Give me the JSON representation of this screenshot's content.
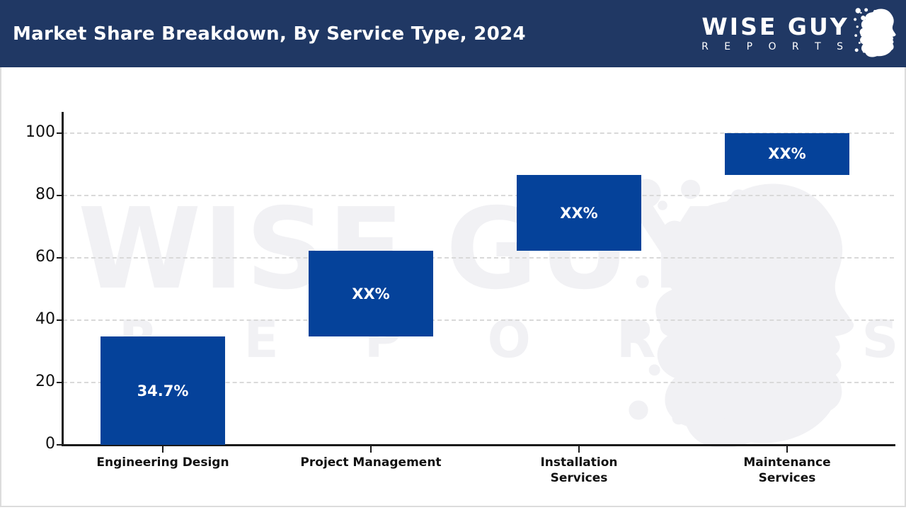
{
  "header": {
    "title": "Market Share Breakdown, By Service Type, 2024",
    "logo": {
      "name": "WISE GUY REPORTS",
      "line1": "WISE GUY",
      "line2": "R E P O R T S"
    }
  },
  "watermark": {
    "line1": "WISE GUY",
    "line2": "R E P O R T S"
  },
  "colors": {
    "header_bg": "#203864",
    "bar": "#05429a",
    "bar_label_text": "#ffffff",
    "grid": "#d9d9d9",
    "axis": "#1a1a1a",
    "tick_text": "#111111",
    "watermark": "#f1f1f4",
    "frame_border": "#dcdcdc"
  },
  "chart_data": {
    "type": "bar",
    "subtype": "stacked-waterfall",
    "title": "Market Share Breakdown, By Service Type, 2024",
    "xlabel": "",
    "ylabel": "",
    "categories": [
      "Engineering Design",
      "Project Management",
      "Installation\nServices",
      "Maintenance\nServices"
    ],
    "segments": [
      {
        "category": "Engineering Design",
        "start": 0,
        "end": 34.7,
        "value": 34.7,
        "label": "34.7%"
      },
      {
        "category": "Project Management",
        "start": 34.7,
        "end": 62.2,
        "value": 27.5,
        "label": "XX%"
      },
      {
        "category": "Installation Services",
        "start": 62.2,
        "end": 86.6,
        "value": 24.4,
        "label": "XX%"
      },
      {
        "category": "Maintenance Services",
        "start": 86.6,
        "end": 100,
        "value": 13.4,
        "label": "XX%"
      }
    ],
    "yticks": [
      0,
      20,
      40,
      60,
      80,
      100
    ],
    "ylim": [
      0,
      106
    ],
    "grid": "horizontal dashed",
    "legend": "none"
  }
}
